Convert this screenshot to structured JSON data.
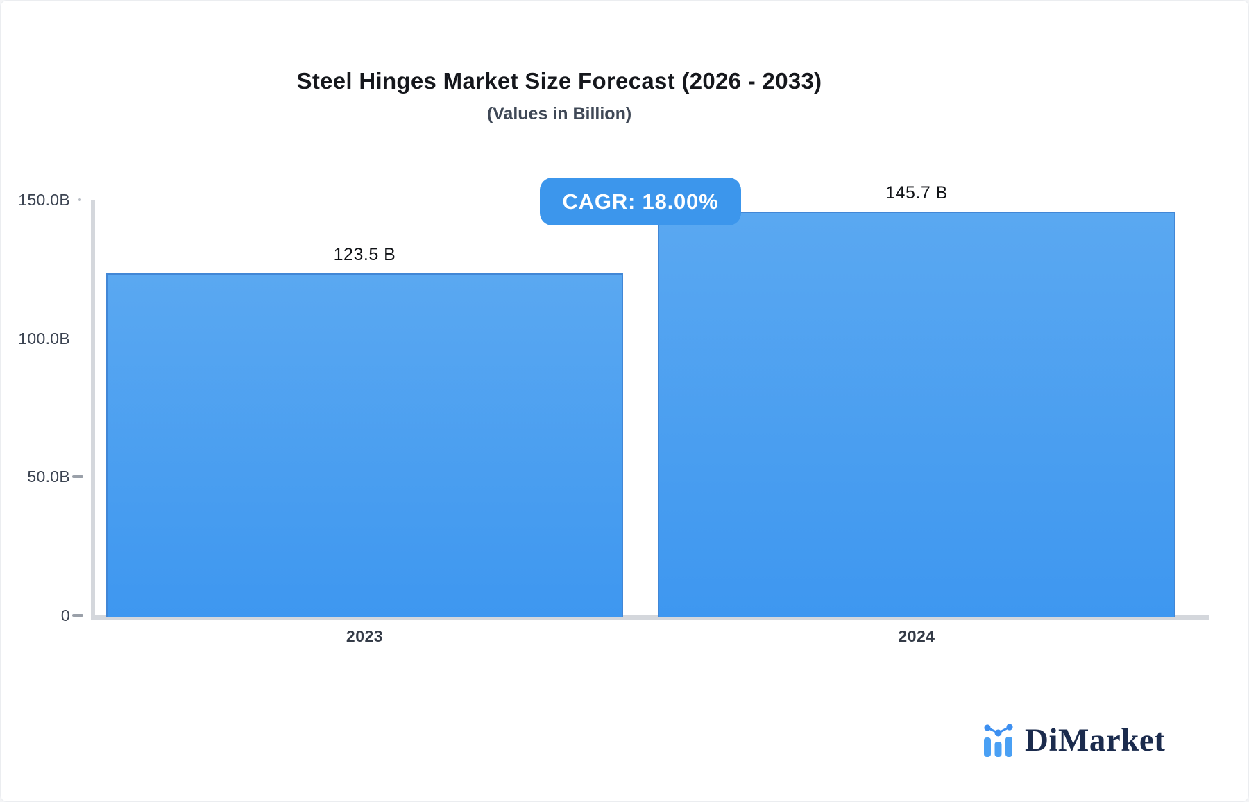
{
  "chart_data": {
    "type": "bar",
    "title": "Steel Hinges Market Size Forecast (2026 - 2033)",
    "subtitle": "(Values in Billion)",
    "cagr_badge": "CAGR: 18.00%",
    "categories": [
      "2023",
      "2024"
    ],
    "values": [
      123.5,
      145.7
    ],
    "value_labels": [
      "123.5 B",
      "145.7 B"
    ],
    "ylim": [
      0,
      150
    ],
    "yticks": [
      {
        "label": "150.0B",
        "value": 150,
        "tick": "dot"
      },
      {
        "label": "100.0B",
        "value": 100,
        "tick": "none"
      },
      {
        "label": "50.0B",
        "value": 50,
        "tick": "dash"
      },
      {
        "label": "0",
        "value": 0,
        "tick": "dash"
      }
    ],
    "grid": false,
    "legend": false,
    "bar_color_top": "#5aa8f1",
    "bar_color_bottom": "#3e97f0",
    "bar_border_color": "#4287d6",
    "badge_color": "#3c96ec",
    "axis_line_color": "#d4d7dc"
  },
  "branding": {
    "logo_text": "DiMarket",
    "logo_icon": "bar-chart-with-trendline-icon",
    "logo_text_color": "#1b2b4d",
    "logo_bar_color": "#4aa0f4",
    "logo_dot_color": "#3d8ff0"
  }
}
